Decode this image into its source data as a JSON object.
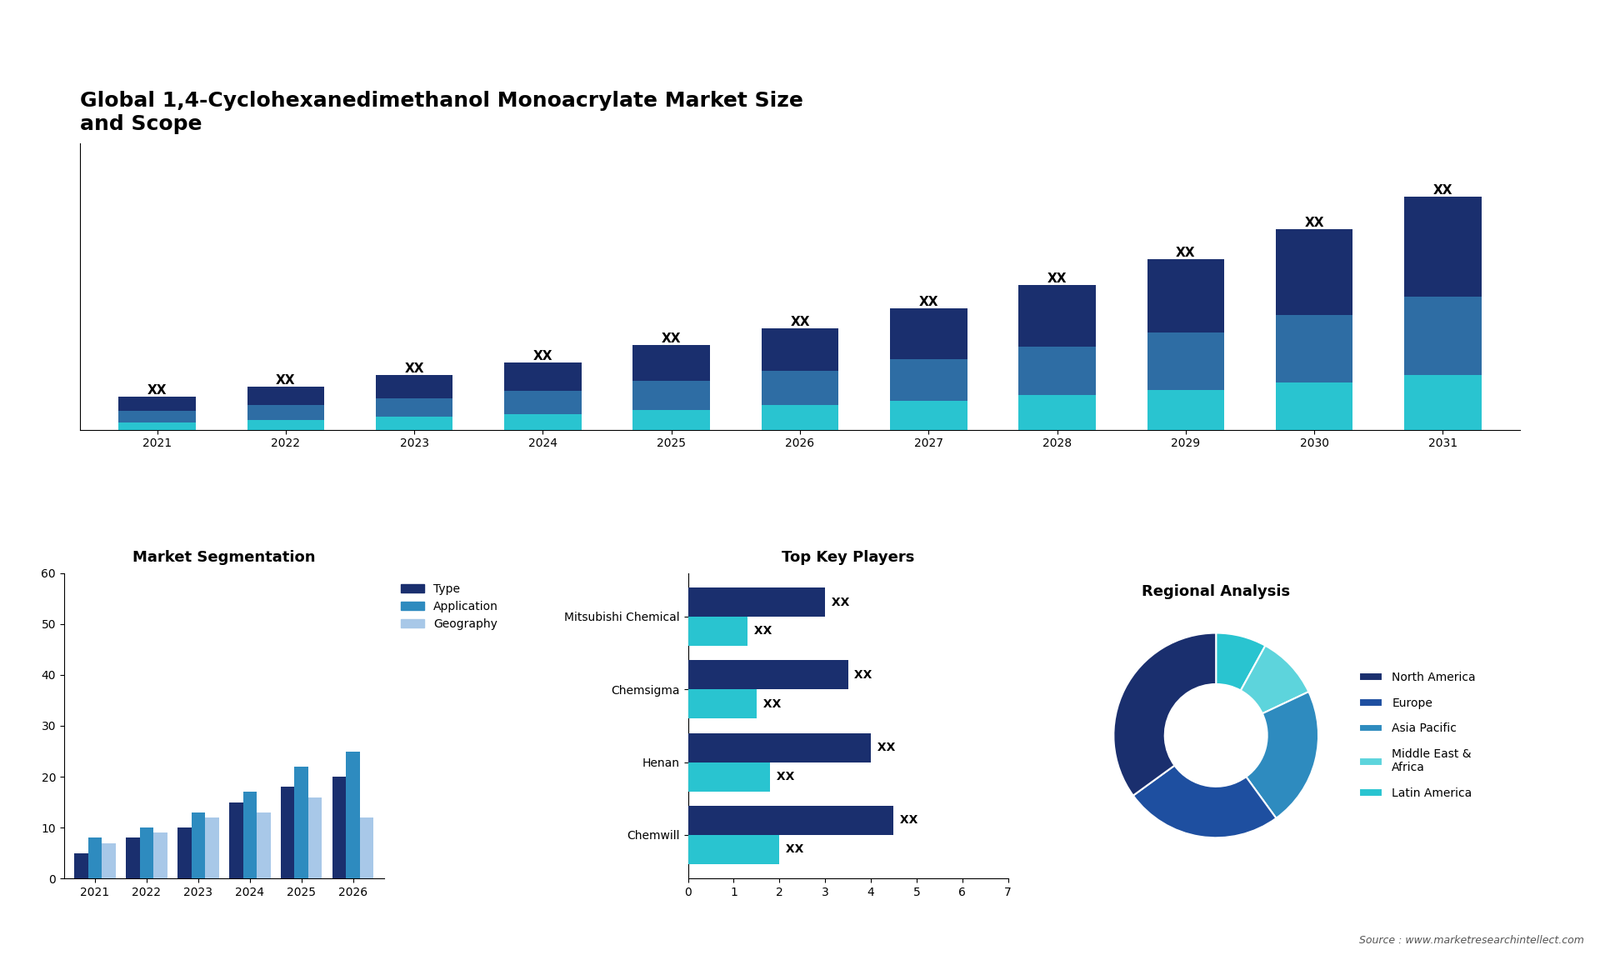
{
  "chart_data": [
    {
      "type": "bar",
      "stacked": true,
      "title": "Global 1,4-Cyclohexanedimethanol Monoacrylate Market Size\nand Scope",
      "categories": [
        "2021",
        "2022",
        "2023",
        "2024",
        "2025",
        "2026",
        "2027",
        "2028",
        "2029",
        "2030",
        "2031"
      ],
      "series": [
        {
          "color": "#29c4d0",
          "values": [
            0.5,
            0.7,
            0.9,
            1.1,
            1.4,
            1.7,
            2.0,
            2.4,
            2.8,
            3.3,
            3.8
          ]
        },
        {
          "color": "#2e6da4",
          "values": [
            0.8,
            1.0,
            1.3,
            1.6,
            2.0,
            2.4,
            2.9,
            3.4,
            4.0,
            4.7,
            5.5
          ]
        },
        {
          "color": "#1a2f6e",
          "values": [
            1,
            1.3,
            1.6,
            2.0,
            2.5,
            3.0,
            3.6,
            4.3,
            5.1,
            6.0,
            7.0
          ],
          "value_labels": [
            "XX",
            "XX",
            "XX",
            "XX",
            "XX",
            "XX",
            "XX",
            "XX",
            "XX",
            "XX",
            "XX"
          ]
        }
      ],
      "data_labels": true,
      "ylim": [
        0,
        20
      ],
      "tick_labels": "x"
    },
    {
      "type": "bar",
      "title": "Market Segmentation",
      "categories": [
        "2021",
        "2022",
        "2023",
        "2024",
        "2025",
        "2026"
      ],
      "series": [
        {
          "name": "Type",
          "color": "#1a2f6e",
          "values": [
            5,
            8,
            10,
            15,
            18,
            20
          ]
        },
        {
          "name": "Application",
          "color": "#2e8bbf",
          "values": [
            8,
            10,
            13,
            17,
            22,
            25
          ]
        },
        {
          "name": "Geography",
          "color": "#a8c8e8",
          "values": [
            7,
            9,
            12,
            13,
            16,
            12
          ]
        }
      ],
      "ylim": [
        0,
        60
      ],
      "yticks": [
        0,
        10,
        20,
        30,
        40,
        50,
        60
      ],
      "legend": "upper left"
    },
    {
      "type": "bar",
      "orientation": "horizontal",
      "title": "Top Key Players",
      "categories": [
        "Chemwill",
        "Henan",
        "Chemsigma",
        "Mitsubishi Chemical"
      ],
      "series": [
        {
          "color": "#1a2f6e",
          "values": [
            4.5,
            4.0,
            3.5,
            3.0
          ],
          "value_labels": [
            "XX",
            "XX",
            "XX",
            "XX"
          ]
        },
        {
          "color": "#29c4d0",
          "values": [
            2.0,
            1.8,
            1.5,
            1.3
          ],
          "value_labels": [
            "XX",
            "XX",
            "XX",
            "XX"
          ]
        }
      ],
      "data_labels": true,
      "xlim": [
        0,
        7
      ],
      "xticks": [
        0,
        1,
        2,
        3,
        4,
        5,
        6,
        7
      ]
    },
    {
      "type": "donut",
      "title": "Regional Analysis",
      "categories": [
        "Latin America",
        "Middle East &\nAfrica",
        "Asia Pacific",
        "Europe",
        "North America"
      ],
      "values": [
        8,
        10,
        22,
        25,
        35
      ],
      "colors": [
        "#29c4d0",
        "#5dd4dc",
        "#2e8bbf",
        "#1e4fa0",
        "#1a2f6e"
      ],
      "legend": "center left",
      "annotation": "Source : www.marketresearchintellect.com"
    }
  ]
}
